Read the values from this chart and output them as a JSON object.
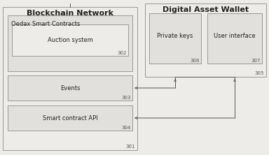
{
  "bg_color": "#eeece8",
  "box_edge_color": "#999999",
  "inner_fill": "#e2e0dc",
  "bg_fill": "#eeece8",
  "title_blockchain": "Blockchain Network",
  "title_wallet": "Digital Asset Wallet",
  "label_oedax": "Oedax Smart Contracts",
  "label_auction": "Auction system",
  "label_events": "Events",
  "label_api": "Smart contract API",
  "label_private": "Private keys",
  "label_ui": "User interface",
  "num_301": "301",
  "num_302": "302",
  "num_303": "303",
  "num_304": "304",
  "num_305": "305",
  "num_306": "306",
  "num_307": "307",
  "figsize": [
    3.84,
    2.22
  ],
  "dpi": 100
}
